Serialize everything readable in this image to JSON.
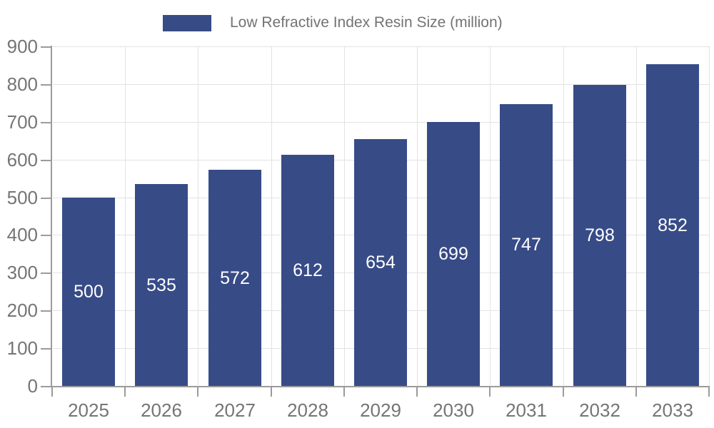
{
  "legend": {
    "label": "Low Refractive Index Resin Size (million)"
  },
  "chart_data": {
    "type": "bar",
    "title": "",
    "xlabel": "",
    "ylabel": "",
    "categories": [
      "2025",
      "2026",
      "2027",
      "2028",
      "2029",
      "2030",
      "2031",
      "2032",
      "2033"
    ],
    "series": [
      {
        "name": "Low Refractive Index Resin Size (million)",
        "values": [
          500,
          535,
          572,
          612,
          654,
          699,
          747,
          798,
          852
        ]
      }
    ],
    "value_labels_shown": true,
    "value_label_position": "inside-center",
    "ylim": [
      0,
      900
    ],
    "yticks": [
      0,
      100,
      200,
      300,
      400,
      500,
      600,
      700,
      800,
      900
    ],
    "grid": true,
    "legend_position": "top-center",
    "colors": {
      "bar": "#374b87",
      "grid": "#e3e3e3",
      "axis": "#9b9b9b",
      "tick_text": "#757575",
      "value_text": "#ffffff",
      "legend_text": "#737373",
      "background": "#ffffff"
    }
  }
}
